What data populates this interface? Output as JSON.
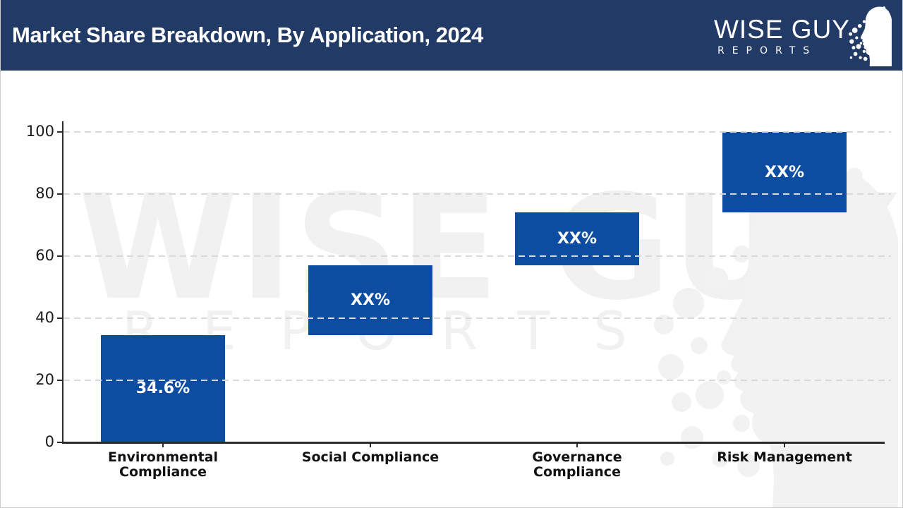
{
  "header": {
    "title": "Market Share Breakdown, By Application, 2024",
    "logo": {
      "line1": "WISE GUY",
      "line2": "REPORTS"
    }
  },
  "watermark": {
    "line1": "WISE GUY",
    "line2": "REPORTS"
  },
  "colors": {
    "header_bg": "#213a66",
    "bar": "#0c4da2",
    "axis": "#2b2b2b",
    "gridline": "#d9d9d9",
    "watermark": "#f1f1f1",
    "bar_label_text": "#ffffff"
  },
  "chart_data": {
    "type": "bar",
    "subtype": "waterfall",
    "title": "Market Share Breakdown, By Application, 2024",
    "categories": [
      "Environmental Compliance",
      "Social Compliance",
      "Governance Compliance",
      "Risk Management"
    ],
    "category_lines": [
      [
        "Environmental",
        "Compliance"
      ],
      [
        "Social Compliance"
      ],
      [
        "Governance",
        "Compliance"
      ],
      [
        "Risk Management"
      ]
    ],
    "segments": [
      {
        "category": "Environmental Compliance",
        "start": 0,
        "end": 34.6,
        "value": 34.6,
        "label": "34.6%"
      },
      {
        "category": "Social Compliance",
        "start": 34.6,
        "end": 57,
        "value": 22.4,
        "label": "XX%"
      },
      {
        "category": "Governance Compliance",
        "start": 57,
        "end": 74,
        "value": 17,
        "label": "XX%"
      },
      {
        "category": "Risk Management",
        "start": 74,
        "end": 100,
        "value": 26,
        "label": "XX%"
      }
    ],
    "xlabel": "",
    "ylabel": "",
    "yticks": [
      0,
      20,
      40,
      60,
      80,
      100
    ],
    "ylim": [
      0,
      104
    ],
    "grid": "horizontal-dashed",
    "legend": "none",
    "bar_color": "#0c4da2",
    "label_color": "#ffffff"
  }
}
